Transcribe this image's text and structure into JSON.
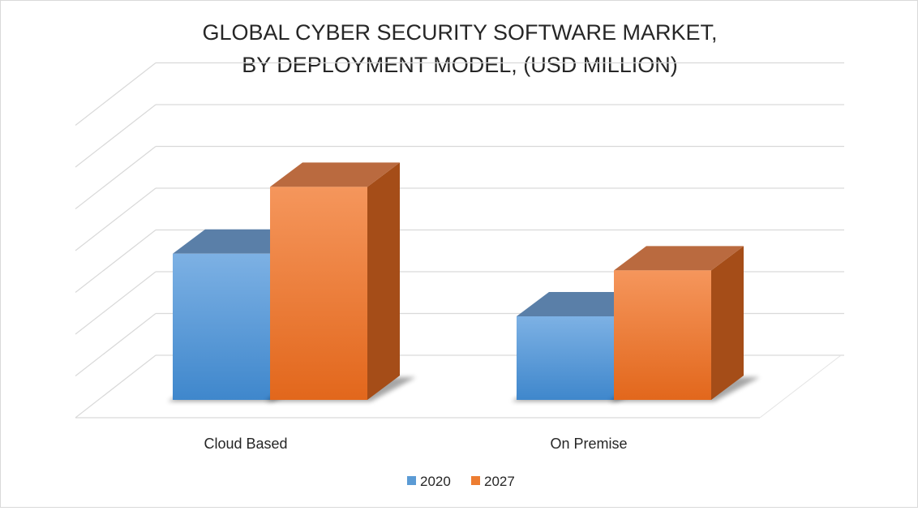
{
  "chart_data": {
    "type": "bar",
    "style": "3d-clustered-column",
    "title_lines": [
      "GLOBAL CYBER SECURITY SOFTWARE MARKET,",
      "BY DEPLOYMENT MODEL, (USD MILLION)"
    ],
    "categories": [
      "Cloud Based",
      "On Premise"
    ],
    "series": [
      {
        "name": "2020",
        "values": [
          3.5,
          2.0
        ],
        "color": "#5b9bd5"
      },
      {
        "name": "2027",
        "values": [
          5.1,
          3.1
        ],
        "color": "#ed7d31"
      }
    ],
    "ylim": [
      0,
      7
    ],
    "grid": true,
    "axis_tick_labels_visible": false,
    "legend_position": "bottom"
  }
}
